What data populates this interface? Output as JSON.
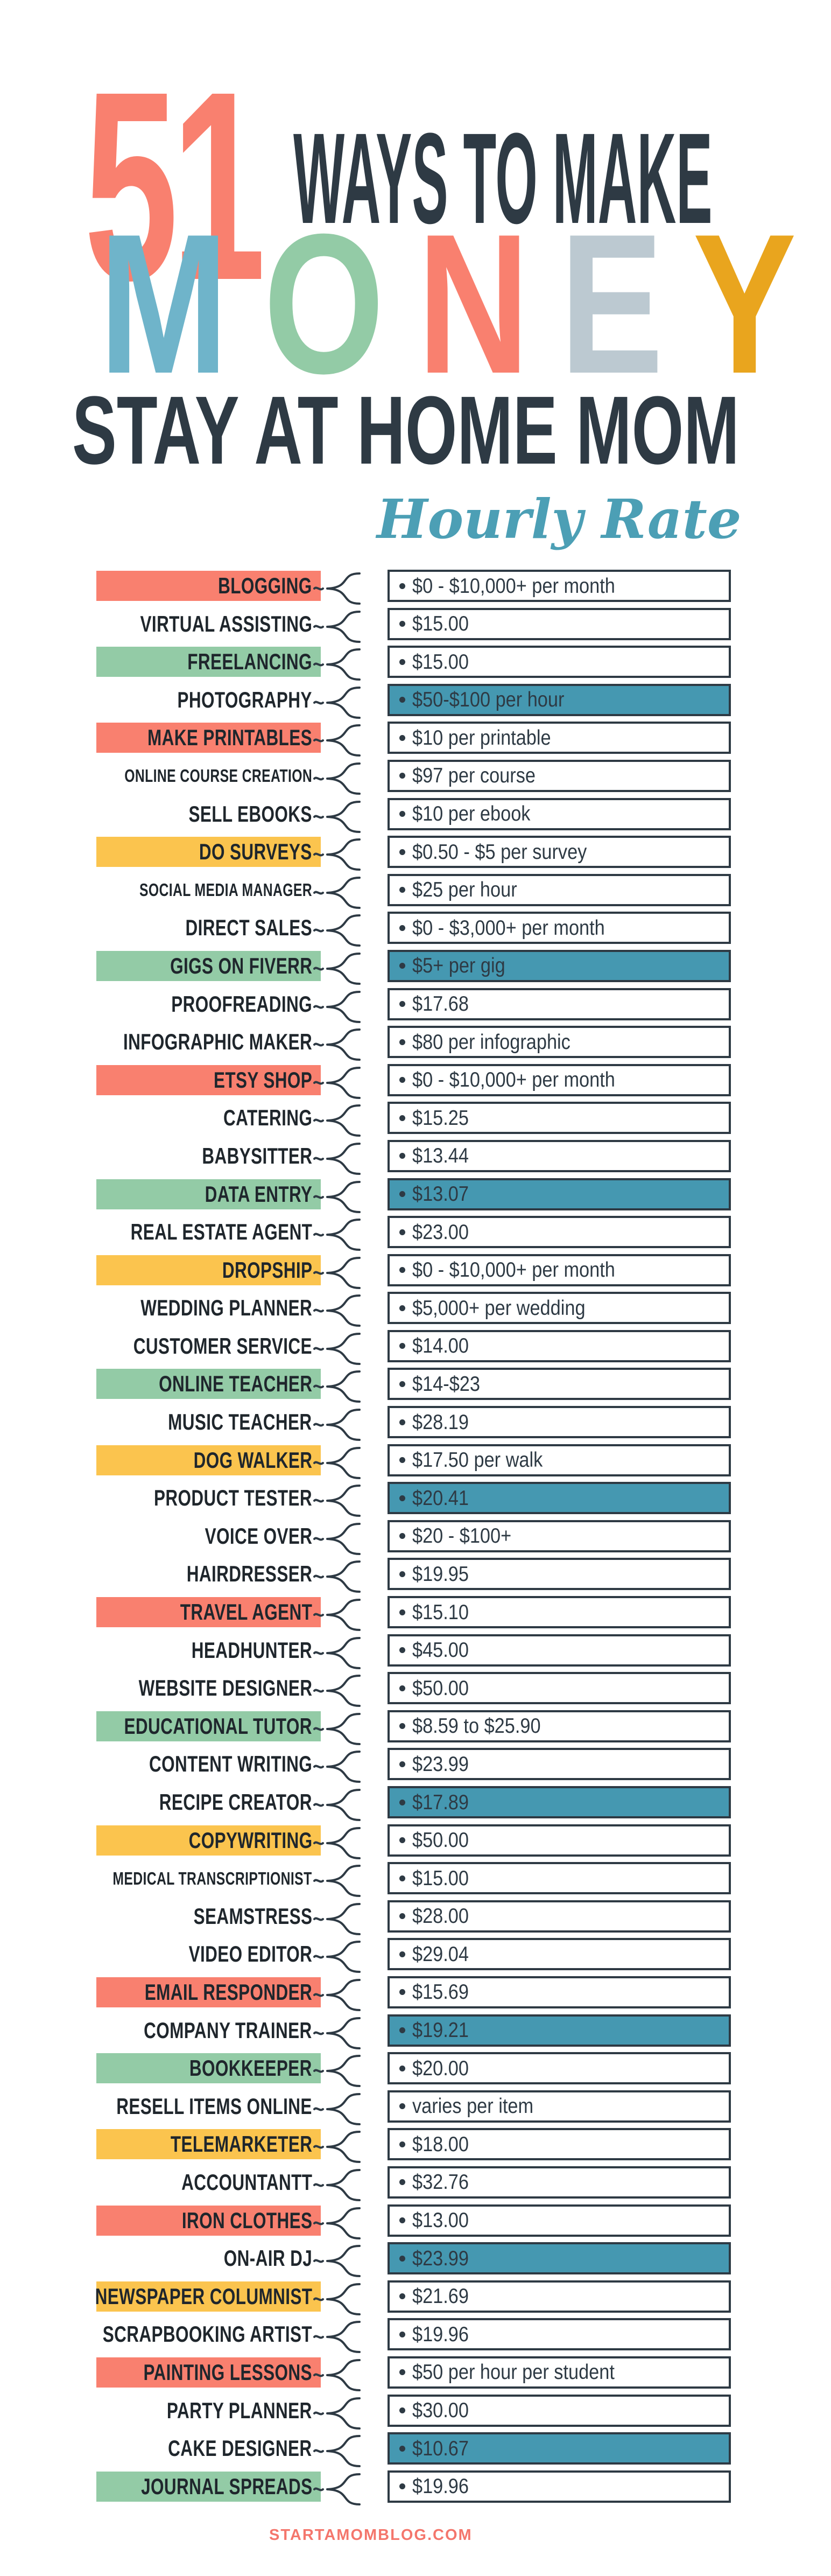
{
  "title": {
    "number": "51",
    "line1": "WAYS TO MAKE",
    "money_word": "MONEY",
    "money_letters": [
      {
        "ch": "M",
        "color": "#6FB4CA"
      },
      {
        "ch": "O",
        "color": "#93CBA6"
      },
      {
        "ch": "N",
        "color": "#F9806F"
      },
      {
        "ch": "E",
        "color": "#BCC9D1"
      },
      {
        "ch": "Y",
        "color": "#E9A51E"
      }
    ],
    "line2": "STAY AT HOME MOM"
  },
  "column_header": "Hourly Rate",
  "rows": [
    {
      "label": "BLOGGING",
      "rate": "$0 - $10,000+ per month",
      "label_bg": "coral",
      "rate_bg": null
    },
    {
      "label": "VIRTUAL ASSISTING",
      "rate": "$15.00",
      "label_bg": null,
      "rate_bg": null
    },
    {
      "label": "FREELANCING",
      "rate": "$15.00",
      "label_bg": "green",
      "rate_bg": null
    },
    {
      "label": "PHOTOGRAPHY",
      "rate": "$50-$100 per hour",
      "label_bg": null,
      "rate_bg": "teal"
    },
    {
      "label": "MAKE PRINTABLES",
      "rate": "$10 per printable",
      "label_bg": "coral",
      "rate_bg": null
    },
    {
      "label": "ONLINE COURSE CREATION",
      "rate": "$97 per course",
      "label_bg": null,
      "rate_bg": null
    },
    {
      "label": "SELL EBOOKS",
      "rate": "$10 per ebook",
      "label_bg": null,
      "rate_bg": null
    },
    {
      "label": "DO SURVEYS",
      "rate": "$0.50 - $5 per survey",
      "label_bg": "yellow",
      "rate_bg": null
    },
    {
      "label": "SOCIAL MEDIA MANAGER",
      "rate": "$25 per hour",
      "label_bg": null,
      "rate_bg": null
    },
    {
      "label": "DIRECT SALES",
      "rate": "$0 - $3,000+ per month",
      "label_bg": null,
      "rate_bg": null
    },
    {
      "label": "GIGS ON FIVERR",
      "rate": "$5+ per gig",
      "label_bg": "green",
      "rate_bg": "teal"
    },
    {
      "label": "PROOFREADING",
      "rate": "$17.68",
      "label_bg": null,
      "rate_bg": null
    },
    {
      "label": "INFOGRAPHIC MAKER",
      "rate": "$80 per infographic",
      "label_bg": null,
      "rate_bg": null
    },
    {
      "label": "ETSY SHOP",
      "rate": "$0 - $10,000+ per month",
      "label_bg": "coral",
      "rate_bg": null
    },
    {
      "label": "CATERING",
      "rate": "$15.25",
      "label_bg": null,
      "rate_bg": null
    },
    {
      "label": "BABYSITTER",
      "rate": "$13.44",
      "label_bg": null,
      "rate_bg": null
    },
    {
      "label": "DATA ENTRY",
      "rate": "$13.07",
      "label_bg": "green",
      "rate_bg": "teal"
    },
    {
      "label": "REAL ESTATE AGENT",
      "rate": "$23.00",
      "label_bg": null,
      "rate_bg": null
    },
    {
      "label": "DROPSHIP",
      "rate": "$0 - $10,000+ per month",
      "label_bg": "yellow",
      "rate_bg": null
    },
    {
      "label": "WEDDING PLANNER",
      "rate": "$5,000+ per wedding",
      "label_bg": null,
      "rate_bg": null
    },
    {
      "label": "CUSTOMER SERVICE",
      "rate": "$14.00",
      "label_bg": null,
      "rate_bg": null
    },
    {
      "label": "ONLINE TEACHER",
      "rate": "$14-$23",
      "label_bg": "green",
      "rate_bg": null
    },
    {
      "label": "MUSIC TEACHER",
      "rate": "$28.19",
      "label_bg": null,
      "rate_bg": null
    },
    {
      "label": "DOG WALKER",
      "rate": "$17.50 per walk",
      "label_bg": "yellow",
      "rate_bg": null
    },
    {
      "label": "PRODUCT TESTER",
      "rate": "$20.41",
      "label_bg": null,
      "rate_bg": "teal"
    },
    {
      "label": "VOICE OVER",
      "rate": "$20 - $100+",
      "label_bg": null,
      "rate_bg": null
    },
    {
      "label": "HAIRDRESSER",
      "rate": "$19.95",
      "label_bg": null,
      "rate_bg": null
    },
    {
      "label": "TRAVEL AGENT",
      "rate": "$15.10",
      "label_bg": "coral",
      "rate_bg": null
    },
    {
      "label": "HEADHUNTER",
      "rate": "$45.00",
      "label_bg": null,
      "rate_bg": null
    },
    {
      "label": "WEBSITE DESIGNER",
      "rate": "$50.00",
      "label_bg": null,
      "rate_bg": null
    },
    {
      "label": "EDUCATIONAL TUTOR",
      "rate": "$8.59 to $25.90",
      "label_bg": "green",
      "rate_bg": null
    },
    {
      "label": "CONTENT WRITING",
      "rate": "$23.99",
      "label_bg": null,
      "rate_bg": null
    },
    {
      "label": "RECIPE CREATOR",
      "rate": "$17.89",
      "label_bg": null,
      "rate_bg": "teal"
    },
    {
      "label": "COPYWRITING",
      "rate": "$50.00",
      "label_bg": "yellow",
      "rate_bg": null
    },
    {
      "label": "MEDICAL TRANSCRIPTIONIST",
      "rate": "$15.00",
      "label_bg": null,
      "rate_bg": null
    },
    {
      "label": "SEAMSTRESS",
      "rate": "$28.00",
      "label_bg": null,
      "rate_bg": null
    },
    {
      "label": "VIDEO EDITOR",
      "rate": "$29.04",
      "label_bg": null,
      "rate_bg": null
    },
    {
      "label": "EMAIL RESPONDER",
      "rate": "$15.69",
      "label_bg": "coral",
      "rate_bg": null
    },
    {
      "label": "COMPANY TRAINER",
      "rate": "$19.21",
      "label_bg": null,
      "rate_bg": "teal"
    },
    {
      "label": "BOOKKEEPER",
      "rate": "$20.00",
      "label_bg": "green",
      "rate_bg": null
    },
    {
      "label": "RESELL ITEMS ONLINE",
      "rate": "varies per item",
      "label_bg": null,
      "rate_bg": null
    },
    {
      "label": "TELEMARKETER",
      "rate": "$18.00",
      "label_bg": "yellow",
      "rate_bg": null
    },
    {
      "label": "ACCOUNTANTT",
      "rate": "$32.76",
      "label_bg": null,
      "rate_bg": null
    },
    {
      "label": "IRON CLOTHES",
      "rate": "$13.00",
      "label_bg": "coral",
      "rate_bg": null
    },
    {
      "label": "ON-AIR DJ",
      "rate": "$23.99",
      "label_bg": null,
      "rate_bg": "teal"
    },
    {
      "label": "NEWSPAPER COLUMNIST",
      "rate": "$21.69",
      "label_bg": "yellow",
      "rate_bg": null
    },
    {
      "label": "SCRAPBOOKING ARTIST",
      "rate": "$19.96",
      "label_bg": null,
      "rate_bg": null
    },
    {
      "label": "PAINTING LESSONS",
      "rate": "$50 per hour per student",
      "label_bg": "coral",
      "rate_bg": null
    },
    {
      "label": "PARTY PLANNER",
      "rate": "$30.00",
      "label_bg": null,
      "rate_bg": null
    },
    {
      "label": "CAKE DESIGNER",
      "rate": "$10.67",
      "label_bg": null,
      "rate_bg": "teal"
    },
    {
      "label": "JOURNAL SPREADS",
      "rate": "$19.96",
      "label_bg": "green",
      "rate_bg": null
    }
  ],
  "footer": "STARTAMOMBLOG.COM",
  "colors": {
    "coral": "#F9806F",
    "green": "#93CBA6",
    "yellow": "#FBC44E",
    "teal": "#4598B1",
    "dark": "#2E3A44",
    "label": "#1F262C",
    "blue": "#6FB4CA",
    "gray": "#BCC9D1",
    "gold": "#E9A51E",
    "script": "#4C9FB5",
    "footer": "#F4766C"
  }
}
